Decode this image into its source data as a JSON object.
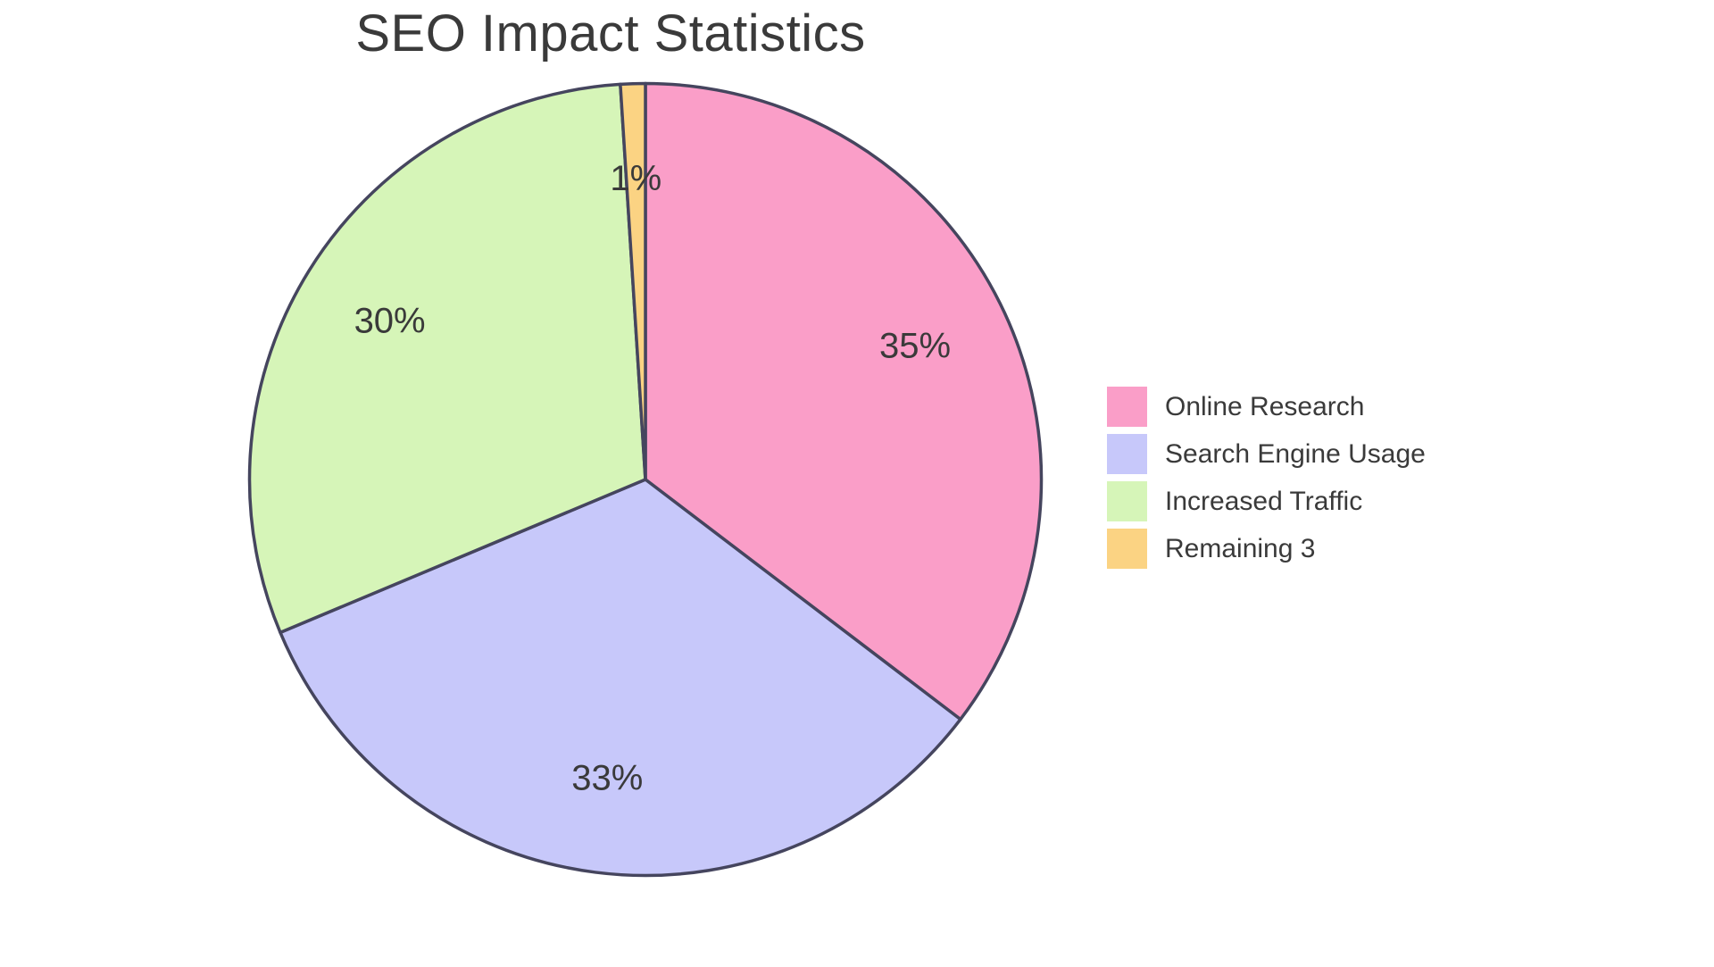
{
  "title": "SEO Impact Statistics",
  "chart_data": {
    "type": "pie",
    "title": "SEO Impact Statistics",
    "start_angle_deg": 0,
    "direction": "clockwise",
    "legend_position": "right",
    "background_color": "#FFFFFF",
    "stroke_color": "#45455E",
    "label_color": "#3A3A3A",
    "slices": [
      {
        "label": "Online Research",
        "value": 35,
        "pct_label": "35%",
        "color": "#FA9EC8"
      },
      {
        "label": "Search Engine Usage",
        "value": 33,
        "pct_label": "33%",
        "color": "#C7C8FA"
      },
      {
        "label": "Increased Traffic",
        "value": 30,
        "pct_label": "30%",
        "color": "#D6F5B8"
      },
      {
        "label": "Remaining 3",
        "value": 1,
        "pct_label": "1%",
        "color": "#FBD383"
      }
    ]
  }
}
